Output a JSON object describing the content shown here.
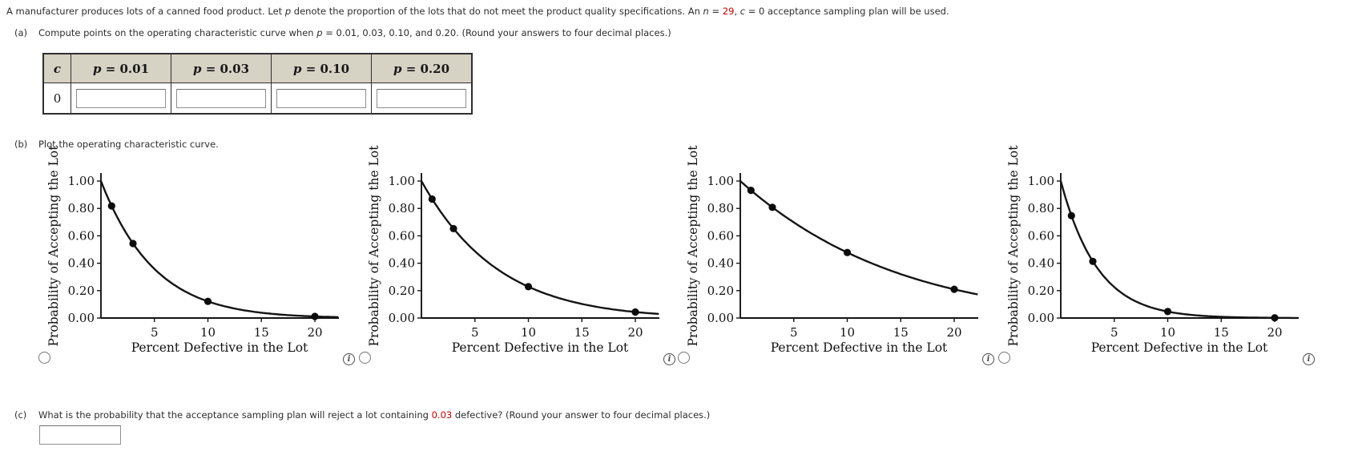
{
  "colors": {
    "accent_red": "#cc0000",
    "table_header_bg": "#d6d2c4",
    "text": "#2d2d2d",
    "curve_color": "#000000"
  },
  "icons": {
    "info_glyph": "i"
  },
  "intro": {
    "parts": [
      {
        "t": "A manufacturer produces lots of a canned food product. Let ",
        "s": "n"
      },
      {
        "t": "p",
        "s": "i"
      },
      {
        "t": " denote the proportion of the lots that do not meet the product quality specifications. An ",
        "s": "n"
      },
      {
        "t": "n",
        "s": "i"
      },
      {
        "t": " = ",
        "s": "n"
      },
      {
        "t": "29",
        "s": "r"
      },
      {
        "t": ", ",
        "s": "n"
      },
      {
        "t": "c",
        "s": "i"
      },
      {
        "t": " = 0 acceptance sampling plan will be used.",
        "s": "n"
      }
    ]
  },
  "part_a": {
    "label": "(a)",
    "parts": [
      {
        "t": "Compute points on the operating characteristic curve when ",
        "s": "n"
      },
      {
        "t": "p",
        "s": "i"
      },
      {
        "t": " = 0.01, 0.03, 0.10, and 0.20. (Round your answers to four decimal places.)",
        "s": "n"
      }
    ]
  },
  "table": {
    "headers": [
      {
        "parts": [
          {
            "t": "c",
            "s": "i"
          }
        ]
      },
      {
        "parts": [
          {
            "t": "p",
            "s": "i"
          },
          {
            "t": " = 0.01",
            "s": "n"
          }
        ]
      },
      {
        "parts": [
          {
            "t": "p",
            "s": "i"
          },
          {
            "t": " = 0.03",
            "s": "n"
          }
        ]
      },
      {
        "parts": [
          {
            "t": "p",
            "s": "i"
          },
          {
            "t": " = 0.10",
            "s": "n"
          }
        ]
      },
      {
        "parts": [
          {
            "t": "p",
            "s": "i"
          },
          {
            "t": " = 0.20",
            "s": "n"
          }
        ]
      }
    ],
    "row_label": "0",
    "inputs": [
      "",
      "",
      "",
      ""
    ]
  },
  "part_b": {
    "label": "(b)",
    "text": "Plot the operating characteristic curve."
  },
  "chart_data": [
    {
      "type": "line",
      "title": "",
      "xlabel": "Percent Defective in the Lot",
      "ylabel": "Probability of Accepting the Lot",
      "x_ticks": [
        5,
        10,
        15,
        20
      ],
      "y_ticks": [
        "0.00",
        "0.20",
        "0.40",
        "0.60",
        "0.80",
        "1.00"
      ],
      "xlim": [
        0,
        22
      ],
      "ylim": [
        0,
        1.05
      ],
      "grid": false,
      "curve_formula": "P(accept) = (1 - p/100)^n",
      "n": 20,
      "points": {
        "x": [
          1,
          3,
          10,
          20
        ],
        "y": [
          0.8179,
          0.5438,
          0.1216,
          0.0115
        ]
      }
    },
    {
      "type": "line",
      "title": "",
      "xlabel": "Percent Defective in the Lot",
      "ylabel": "Probability of Accepting the Lot",
      "x_ticks": [
        5,
        10,
        15,
        20
      ],
      "y_ticks": [
        "0.00",
        "0.20",
        "0.40",
        "0.60",
        "0.80",
        "1.00"
      ],
      "xlim": [
        0,
        22
      ],
      "ylim": [
        0,
        1.05
      ],
      "grid": false,
      "curve_formula": "P(accept) = (1 - p/100)^n",
      "n": 14,
      "points": {
        "x": [
          1,
          3,
          10,
          20
        ],
        "y": [
          0.8687,
          0.6528,
          0.2288,
          0.044
        ]
      }
    },
    {
      "type": "line",
      "title": "",
      "xlabel": "Percent Defective in the Lot",
      "ylabel": "Probability of Accepting the Lot",
      "x_ticks": [
        5,
        10,
        15,
        20
      ],
      "y_ticks": [
        "0.00",
        "0.20",
        "0.40",
        "0.60",
        "0.80",
        "1.00"
      ],
      "xlim": [
        0,
        22
      ],
      "ylim": [
        0,
        1.05
      ],
      "grid": false,
      "curve_formula": "P(accept) = (1 - p/100)^n",
      "n": 7,
      "points": {
        "x": [
          1,
          3,
          10,
          20
        ],
        "y": [
          0.9321,
          0.808,
          0.4783,
          0.2097
        ]
      }
    },
    {
      "type": "line",
      "title": "",
      "xlabel": "Percent Defective in the Lot",
      "ylabel": "Probability of Accepting the Lot",
      "x_ticks": [
        5,
        10,
        15,
        20
      ],
      "y_ticks": [
        "0.00",
        "0.20",
        "0.40",
        "0.60",
        "0.80",
        "1.00"
      ],
      "xlim": [
        0,
        22
      ],
      "ylim": [
        0,
        1.05
      ],
      "grid": false,
      "curve_formula": "P(accept) = (1 - p/100)^n",
      "n": 29,
      "points": {
        "x": [
          1,
          3,
          10,
          20
        ],
        "y": [
          0.7471,
          0.4134,
          0.0471,
          0.0015
        ]
      }
    }
  ],
  "part_c": {
    "label": "(c)",
    "parts": [
      {
        "t": "What is the probability that the acceptance sampling plan will reject a lot containing ",
        "s": "n"
      },
      {
        "t": "0.03",
        "s": "r"
      },
      {
        "t": " defective? (Round your answer to four decimal places.)",
        "s": "n"
      }
    ],
    "input_value": ""
  }
}
